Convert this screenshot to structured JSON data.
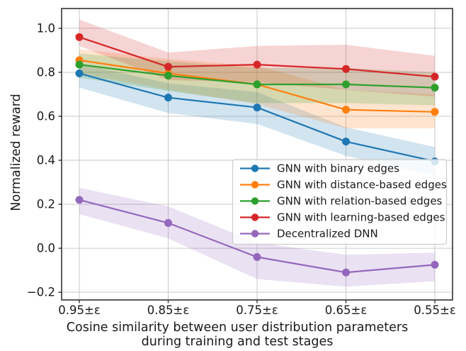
{
  "chart_data": {
    "type": "line",
    "title": "",
    "xlabel_line1": "Cosine similarity between user distribution parameters",
    "xlabel_line2": "during training and test stages",
    "ylabel": "Normalized reward",
    "categories": [
      "0.95±ε",
      "0.85±ε",
      "0.75±ε",
      "0.65±ε",
      "0.55±ε"
    ],
    "y_ticks": [
      1.0,
      0.8,
      0.6,
      0.4,
      0.2,
      0.0,
      -0.2
    ],
    "y_tick_labels": [
      "1.0",
      "0.8",
      "0.6",
      "0.4",
      "0.2",
      "0.0",
      "−0.2"
    ],
    "ylim": [
      -0.235,
      1.09
    ],
    "grid": true,
    "band_opacity": 0.2,
    "legend_position": "inside-center-right",
    "series": [
      {
        "name": "GNN with binary edges",
        "color": "#1f77b4",
        "values": [
          0.795,
          0.685,
          0.64,
          0.485,
          0.395
        ],
        "band_upper": [
          0.84,
          0.75,
          0.71,
          0.55,
          0.46
        ],
        "band_lower": [
          0.73,
          0.615,
          0.565,
          0.42,
          0.33
        ]
      },
      {
        "name": "GNN with distance-based edges",
        "color": "#ff7f0e",
        "values": [
          0.855,
          0.795,
          0.745,
          0.63,
          0.62
        ],
        "band_upper": [
          0.905,
          0.86,
          0.83,
          0.72,
          0.7
        ],
        "band_lower": [
          0.795,
          0.72,
          0.655,
          0.545,
          0.545
        ]
      },
      {
        "name": "GNN with relation-based edges",
        "color": "#2ca02c",
        "values": [
          0.835,
          0.785,
          0.745,
          0.745,
          0.73
        ],
        "band_upper": [
          0.885,
          0.85,
          0.82,
          0.82,
          0.8
        ],
        "band_lower": [
          0.775,
          0.715,
          0.66,
          0.66,
          0.65
        ]
      },
      {
        "name": "GNN with learning-based edges",
        "color": "#d62728",
        "values": [
          0.96,
          0.825,
          0.835,
          0.815,
          0.78
        ],
        "band_upper": [
          1.04,
          0.89,
          0.92,
          0.925,
          0.875
        ],
        "band_lower": [
          0.92,
          0.765,
          0.755,
          0.72,
          0.69
        ]
      },
      {
        "name": "Decentralized DNN",
        "color": "#9467bd",
        "values": [
          0.22,
          0.115,
          -0.04,
          -0.11,
          -0.075
        ],
        "band_upper": [
          0.275,
          0.19,
          0.025,
          -0.03,
          -0.02
        ],
        "band_lower": [
          0.155,
          0.045,
          -0.14,
          -0.175,
          -0.15
        ]
      }
    ],
    "style": {
      "background": "#ffffff",
      "grid_color": "#c9c9c9",
      "spine_color": "#333333",
      "tick_color": "#333333",
      "text_color": "#1a1a1a",
      "legend_border": "#cccccc",
      "legend_background": "#ffffff",
      "legend_opacity": 0.8
    }
  }
}
